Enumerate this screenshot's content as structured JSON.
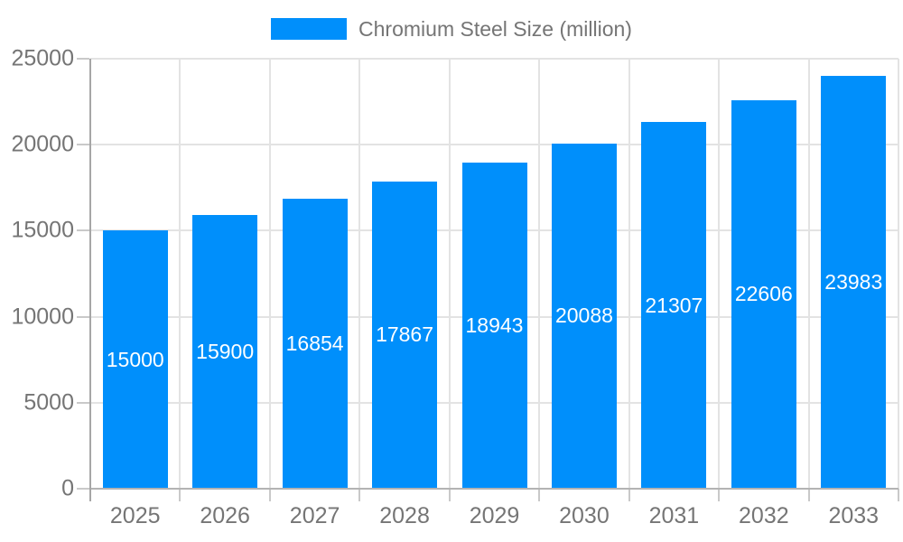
{
  "legend": {
    "label": "Chromium Steel Size (million)"
  },
  "chart_data": {
    "type": "bar",
    "title": "",
    "xlabel": "",
    "ylabel": "",
    "categories": [
      "2025",
      "2026",
      "2027",
      "2028",
      "2029",
      "2030",
      "2031",
      "2032",
      "2033"
    ],
    "series": [
      {
        "name": "Chromium Steel Size (million)",
        "values": [
          15000,
          15900,
          16854,
          17867,
          18943,
          20088,
          21307,
          22606,
          23983
        ]
      }
    ],
    "value_labels_shown": true,
    "ylim": [
      0,
      25000
    ],
    "yticks": [
      0,
      5000,
      10000,
      15000,
      20000,
      25000
    ],
    "grid": true,
    "legend_position": "top-center"
  },
  "colors": {
    "bar": "#008FFB",
    "axis_text": "#757575",
    "grid": "#e3e3e3",
    "axis_line": "#a6a6a6",
    "axis_line_bottom": "#b3b3b3",
    "tick": "#c9c9c9",
    "value_label": "#ffffff",
    "background": "#ffffff"
  }
}
